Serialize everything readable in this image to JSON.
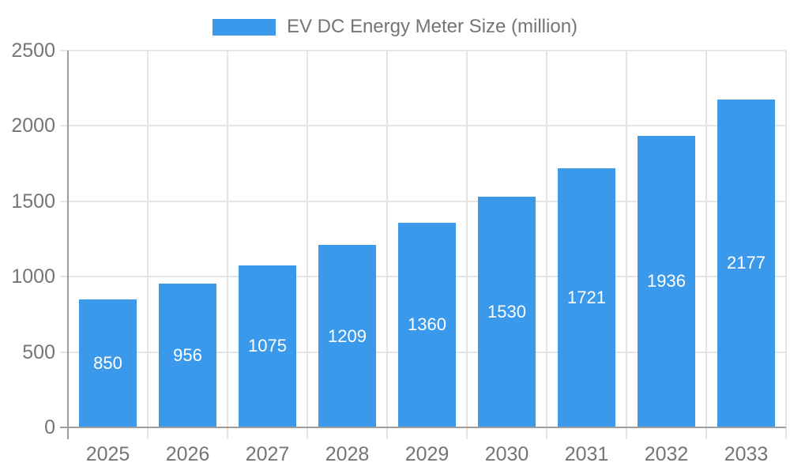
{
  "page": {
    "background": "#FFFFFF"
  },
  "legend": {
    "position": "top",
    "label": "EV DC Energy Meter Size (million)"
  },
  "chart_data": {
    "type": "bar",
    "title": "EV DC Energy Meter Size (million)",
    "series_name": "EV DC Energy Meter Size (million)",
    "categories": [
      "2025",
      "2026",
      "2027",
      "2028",
      "2029",
      "2030",
      "2031",
      "2032",
      "2033"
    ],
    "values": [
      850,
      956,
      1075,
      1209,
      1360,
      1530,
      1721,
      1936,
      2177
    ],
    "xlabel": "",
    "ylabel": "",
    "ylim": [
      0,
      2500
    ],
    "yticks": [
      0,
      500,
      1000,
      1500,
      2000,
      2500
    ],
    "grid": true,
    "legend_position": "top",
    "value_labels": "inside-center",
    "colors": {
      "bar": "#3B99EC",
      "axis_text": "#757575",
      "gridline": "#E5E5E5",
      "axis_line": "#9E9E9E",
      "value_label": "#FFFFFF"
    }
  }
}
